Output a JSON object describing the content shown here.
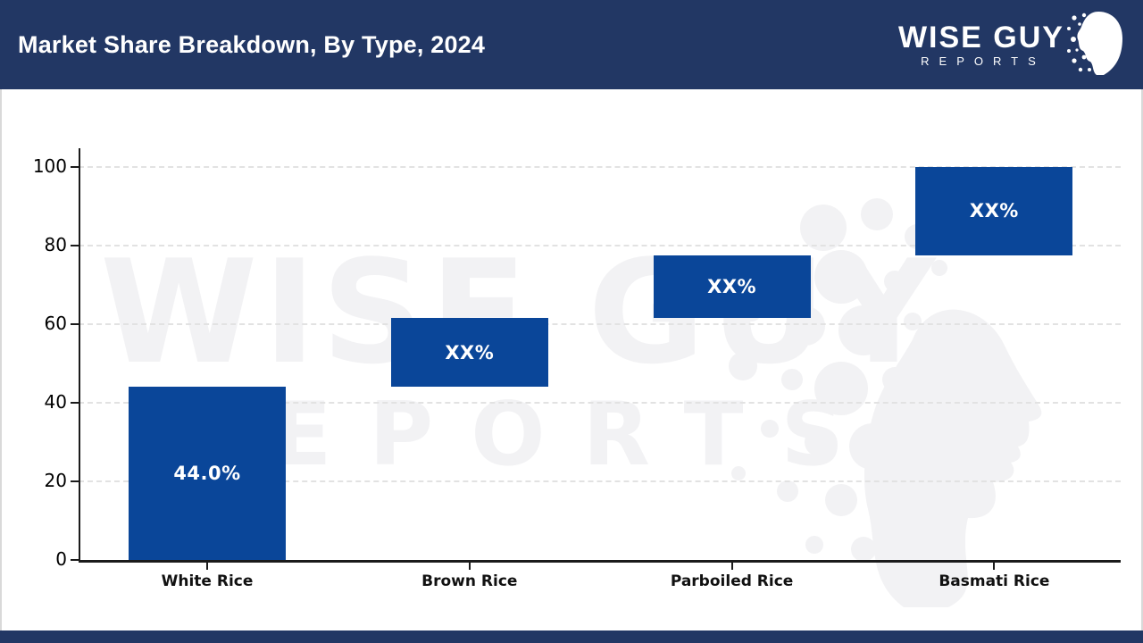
{
  "header": {
    "title": "Market Share Breakdown, By Type, 2024",
    "logo": {
      "line1": "WISE GUY",
      "line2": "REPORTS"
    }
  },
  "watermark": {
    "line1": "WISE GUY",
    "line2": "REPORTS"
  },
  "theme": {
    "navy": "#223764",
    "bar_blue": "#0a4699",
    "grid_gray": "#e2e2e2",
    "axis_black": "#1b1b1b",
    "label_white": "#ffffff",
    "watermark_gray": "#f2f2f4"
  },
  "chart_data": {
    "type": "bar",
    "subtype": "waterfall",
    "title": "Market Share Breakdown, By Type, 2024",
    "categories": [
      "White Rice",
      "Brown Rice",
      "Parboiled Rice",
      "Basmati Rice"
    ],
    "segments": [
      {
        "category": "White Rice",
        "start": 0,
        "end": 44,
        "label": "44.0%"
      },
      {
        "category": "Brown Rice",
        "start": 44,
        "end": 61.6,
        "label": "XX%"
      },
      {
        "category": "Parboiled Rice",
        "start": 61.6,
        "end": 77.6,
        "label": "XX%"
      },
      {
        "category": "Basmati Rice",
        "start": 77.6,
        "end": 100,
        "label": "XX%"
      }
    ],
    "ylim": [
      0,
      100
    ],
    "yticks": [
      0,
      20,
      40,
      60,
      80,
      100
    ],
    "xlabel": "",
    "ylabel": "",
    "grid": "horizontal-dashed",
    "legend": "none",
    "bar_color": "#0a4699",
    "value_label_color": "#ffffff"
  }
}
